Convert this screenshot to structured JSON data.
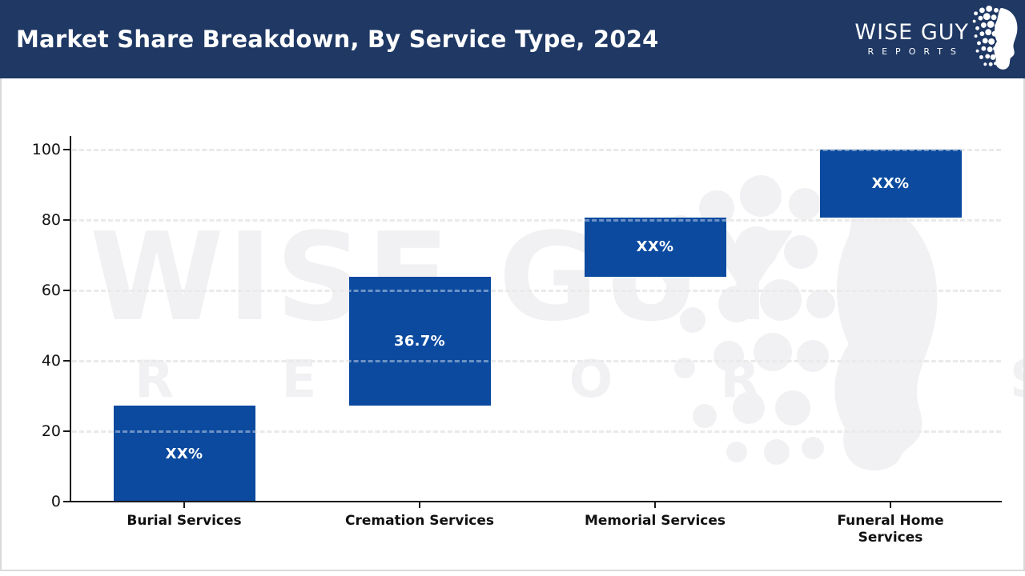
{
  "header": {
    "title": "Market Share Breakdown, By Service Type, 2024",
    "bg_color": "#1f3864",
    "logo": {
      "line1": "WISE GUY",
      "line2": "REPORTS"
    }
  },
  "watermark": {
    "line1": "WISE GUY",
    "line2": "REPORTS"
  },
  "chart_data": {
    "type": "bar",
    "subtype": "waterfall",
    "title": "Market Share Breakdown, By Service Type, 2024",
    "categories": [
      "Burial Services",
      "Cremation Services",
      "Memorial Services",
      "Funeral Home\nServices"
    ],
    "series": [
      {
        "name": "Burial Services",
        "start": 0,
        "end": 27.2,
        "label": "XX%"
      },
      {
        "name": "Cremation Services",
        "start": 27.2,
        "end": 63.9,
        "label": "36.7%"
      },
      {
        "name": "Memorial Services",
        "start": 63.9,
        "end": 80.7,
        "label": "XX%"
      },
      {
        "name": "Funeral Home Services",
        "start": 80.7,
        "end": 100,
        "label": "XX%"
      }
    ],
    "yticks": [
      0,
      20,
      40,
      60,
      80,
      100
    ],
    "ylim": [
      0,
      100
    ],
    "xlabel": "",
    "ylabel": "",
    "grid": "horizontal-dashed",
    "legend": "none",
    "bar_color": "#0b4a9f",
    "bar_label_color": "#ffffff"
  }
}
